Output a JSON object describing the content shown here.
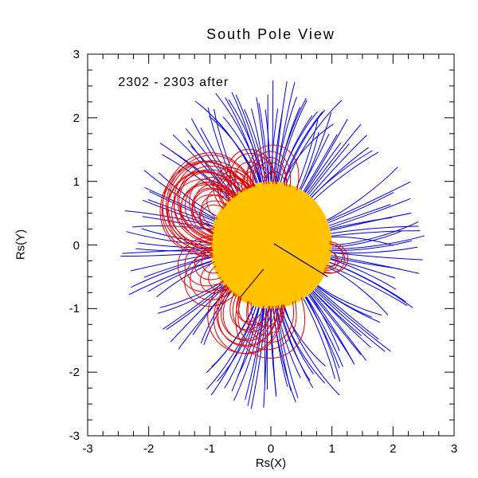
{
  "page": {
    "background": "#ffffff"
  },
  "chart_data": {
    "type": "line",
    "title": "South Pole View",
    "annotation": "2302 - 2303 after",
    "annotation_pos": [
      -2.5,
      2.55
    ],
    "xlabel": "Rs(X)",
    "ylabel": "Rs(Y)",
    "xlim": [
      -3,
      3
    ],
    "ylim": [
      -3,
      3
    ],
    "x_ticks": [
      -3,
      -2,
      -1,
      0,
      1,
      2,
      3
    ],
    "y_ticks": [
      -3,
      -2,
      -1,
      0,
      1,
      2,
      3
    ],
    "minor_tick_step": 0.25,
    "grid": false,
    "legend": null,
    "sun": {
      "center": [
        0,
        0
      ],
      "radius": 1.0,
      "color": "#FFC300"
    },
    "colors": {
      "open_field": "#0000DD",
      "closed_field": "#DD0000",
      "axis": "#000000",
      "text": "#000000"
    },
    "open_field_clusters": [
      {
        "az": 90,
        "foot_spread": 14,
        "far_spread": 28,
        "count": 30,
        "r_end": [
          2.1,
          2.6
        ]
      },
      {
        "az": 128,
        "foot_spread": 8,
        "far_spread": 14,
        "count": 11,
        "r_end": [
          2.0,
          2.45
        ]
      },
      {
        "az": 160,
        "foot_spread": 7,
        "far_spread": 12,
        "count": 9,
        "r_end": [
          2.1,
          2.55
        ]
      },
      {
        "az": 188,
        "foot_spread": 9,
        "far_spread": 16,
        "count": 12,
        "r_end": [
          2.0,
          2.55
        ]
      },
      {
        "az": 222,
        "foot_spread": 7,
        "far_spread": 13,
        "count": 9,
        "r_end": [
          1.9,
          2.4
        ]
      },
      {
        "az": 268,
        "foot_spread": 15,
        "far_spread": 27,
        "count": 28,
        "r_end": [
          2.1,
          2.65
        ]
      },
      {
        "az": 312,
        "foot_spread": 9,
        "far_spread": 16,
        "count": 17,
        "r_end": [
          2.0,
          2.6
        ]
      },
      {
        "az": 350,
        "foot_spread": 10,
        "far_spread": 18,
        "count": 14,
        "r_end": [
          2.1,
          2.6
        ]
      },
      {
        "az": 15,
        "foot_spread": 8,
        "far_spread": 14,
        "count": 10,
        "r_end": [
          2.0,
          2.5
        ]
      },
      {
        "az": 55,
        "foot_spread": 9,
        "far_spread": 16,
        "count": 13,
        "r_end": [
          1.9,
          2.45
        ]
      }
    ],
    "closed_field_clusters": [
      {
        "az": 172,
        "jitter": 30,
        "count": 24,
        "apex": [
          1.15,
          1.95
        ],
        "families": 4
      },
      {
        "az": 205,
        "jitter": 12,
        "count": 8,
        "apex": [
          1.1,
          1.5
        ],
        "families": 2
      },
      {
        "az": 268,
        "jitter": 18,
        "count": 16,
        "apex": [
          1.15,
          1.75
        ],
        "families": 3
      },
      {
        "az": 95,
        "jitter": 12,
        "count": 10,
        "apex": [
          1.1,
          1.5
        ],
        "families": 2
      },
      {
        "az": 130,
        "jitter": 8,
        "count": 6,
        "apex": [
          1.1,
          1.35
        ],
        "families": 1
      },
      {
        "az": 355,
        "jitter": 8,
        "count": 5,
        "apex": [
          1.05,
          1.25
        ],
        "families": 1
      }
    ],
    "disk_segments": [
      {
        "color": "#000066",
        "from": [
          0.05,
          0.02
        ],
        "to": [
          0.93,
          -0.5
        ]
      },
      {
        "color": "#660000",
        "from": [
          -0.5,
          -0.82
        ],
        "to": [
          -0.12,
          -0.38
        ]
      }
    ]
  }
}
